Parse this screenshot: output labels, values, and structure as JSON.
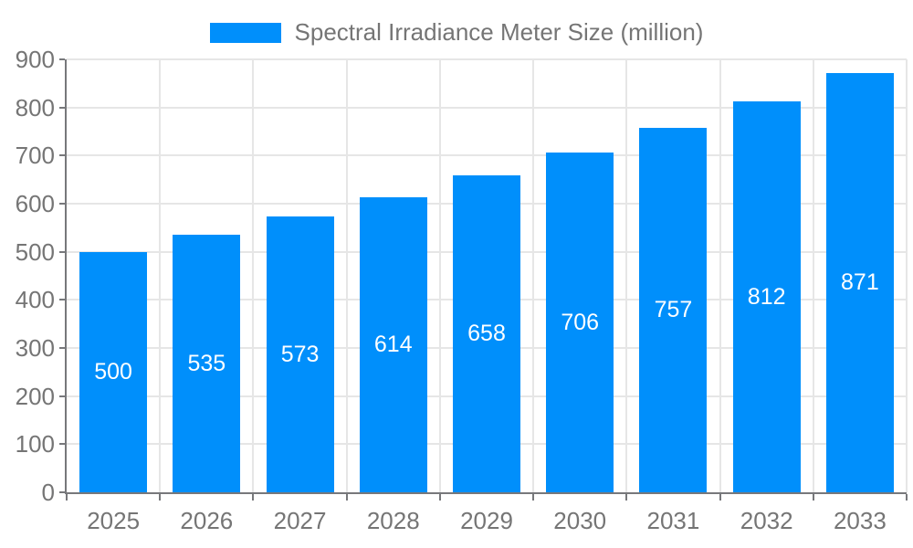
{
  "legend": {
    "swatch_color": "#008FFB"
  },
  "chart_data": {
    "type": "bar",
    "title": "Spectral Irradiance Meter Size (million)",
    "categories": [
      "2025",
      "2026",
      "2027",
      "2028",
      "2029",
      "2030",
      "2031",
      "2032",
      "2033"
    ],
    "values": [
      500,
      535,
      573,
      614,
      658,
      706,
      757,
      812,
      871
    ],
    "xlabel": "",
    "ylabel": "",
    "ylim": [
      0,
      900
    ],
    "ytick_step": 100,
    "ytick_labels": [
      "0",
      "100",
      "200",
      "300",
      "400",
      "500",
      "600",
      "700",
      "800",
      "900"
    ],
    "grid": true,
    "legend_position": "top",
    "colors": {
      "bar": "#008FFB",
      "grid": "#e6e6e6",
      "axis": "#77787b",
      "axis_text": "#757575",
      "value_label": "#ffffff",
      "background": "#ffffff"
    }
  }
}
